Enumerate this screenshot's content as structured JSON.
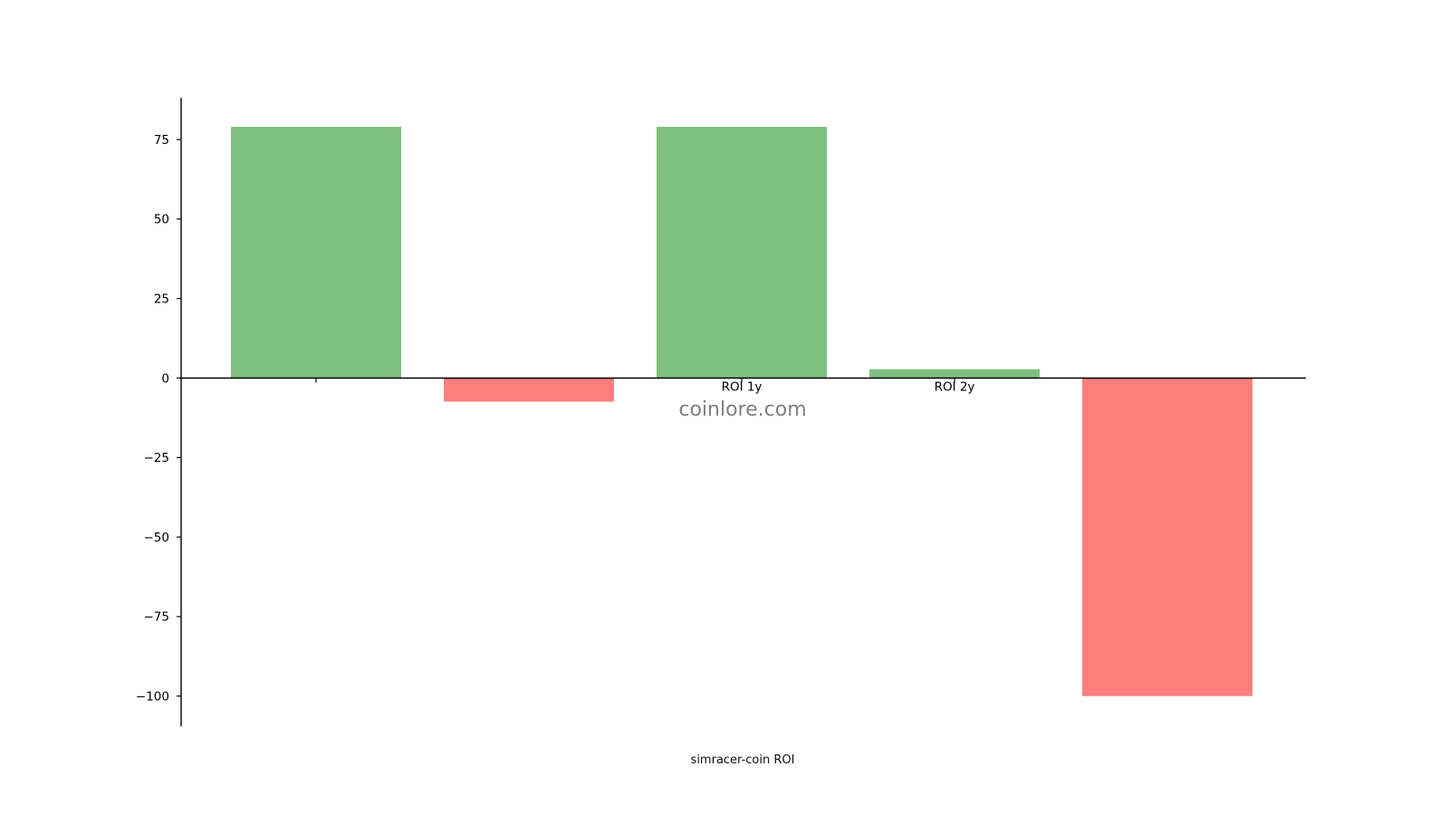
{
  "chart_data": {
    "type": "bar",
    "title": "simracer-coin ROI",
    "watermark": "coinlore.com",
    "categories": [
      "",
      "",
      "ROI 1y",
      "ROI 2y",
      ""
    ],
    "values": [
      79,
      -7.4,
      79,
      2.8,
      -100
    ],
    "bar_colors": [
      "#7fbf7f",
      "#ff7f7f",
      "#7fbf7f",
      "#7fbf7f",
      "#ff7f7f"
    ],
    "positive_color": "#7fbf7f",
    "negative_color": "#ff7f7f",
    "y_ticks": [
      75,
      50,
      25,
      0,
      -25,
      -50,
      -75,
      -100
    ],
    "y_tick_labels": [
      "75",
      "50",
      "25",
      "0",
      "−25",
      "−50",
      "−75",
      "−100"
    ],
    "ylim": [
      -109,
      88
    ],
    "xlabel": "",
    "ylabel": "",
    "grid": false,
    "legend": null,
    "axis_color": "#000000",
    "tick_text_color": "#000000",
    "watermark_color": "#808080"
  }
}
